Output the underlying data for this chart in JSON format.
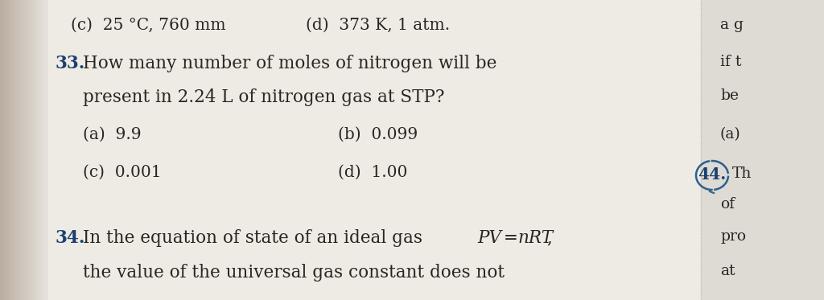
{
  "bg_main": "#e8e4de",
  "bg_page": "#f0ece6",
  "bg_right": "#e8e4de",
  "left_spine_color": "#b8a898",
  "text_color": "#2a2520",
  "blue_num_color": "#1a4070",
  "top_line_c": "(c)  25 °C, 760 mm",
  "top_line_d": "(d)  373 K, 1 atm.",
  "q33_label": "33.",
  "q33_line1": "How many number of moles of nitrogen will be",
  "q33_line2": "present in 2.24 L of nitrogen gas at STP?",
  "q33_a": "(a)  9.9",
  "q33_b": "(b)  0.099",
  "q33_c": "(c)  0.001",
  "q33_d": "(d)  1.00",
  "q34_label": "34.",
  "q34_line1a": "In the equation of state of an ideal gas ",
  "q34_line1b": "PV",
  "q34_line1c": " = ",
  "q34_line1d": "nRT",
  "q34_line1e": ",",
  "q34_line2": "the value of the universal gas constant does not",
  "rc_ag": "a g",
  "rc_ift": "if t",
  "rc_be": "be",
  "rc_a": "(a)",
  "rc_44": "44.",
  "rc_Th": "Th",
  "rc_of": "of",
  "rc_pro": "pro",
  "rc_at": "at",
  "figwidth": 10.24,
  "figheight": 3.73,
  "dpi": 100
}
